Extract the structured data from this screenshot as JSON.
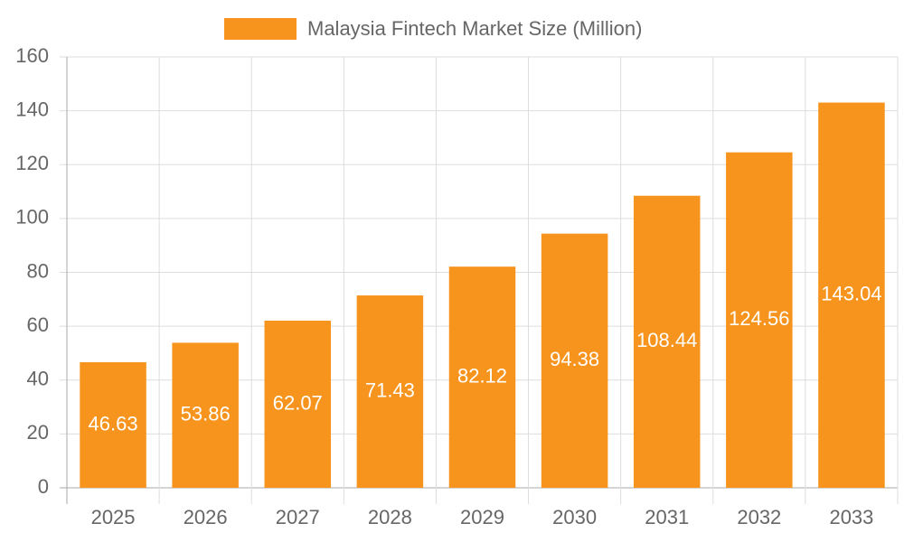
{
  "chart_data": {
    "type": "bar",
    "categories": [
      "2025",
      "2026",
      "2027",
      "2028",
      "2029",
      "2030",
      "2031",
      "2032",
      "2033"
    ],
    "series": [
      {
        "name": "Malaysia Fintech Market Size (Million)",
        "color": "#f7941d",
        "values": [
          46.63,
          53.86,
          62.07,
          71.43,
          82.12,
          94.38,
          108.44,
          124.56,
          143.04
        ]
      }
    ],
    "ylim": [
      0,
      160
    ],
    "yticks": [
      0,
      20,
      40,
      60,
      80,
      100,
      120,
      140,
      160
    ],
    "grid": true,
    "legend": "top"
  }
}
